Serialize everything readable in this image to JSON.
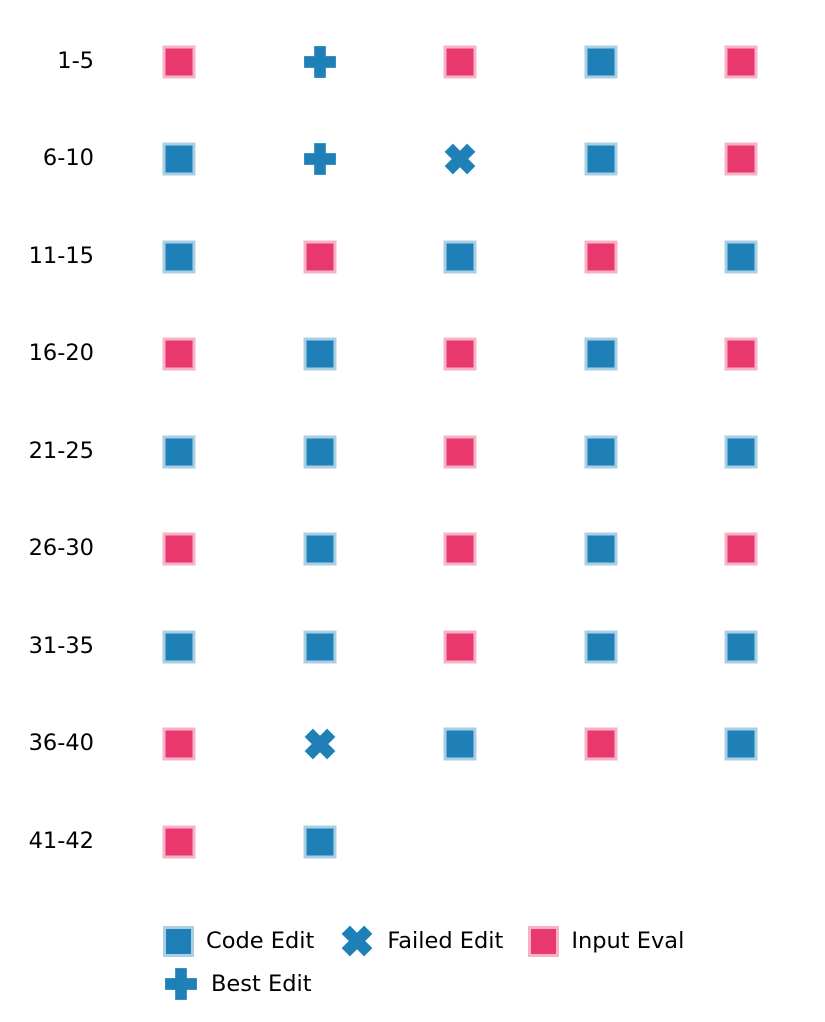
{
  "chart_data": {
    "type": "scatter",
    "description": "Categorical marker grid: each row of problems (1-5 ... 41-42) shows up to five outcome markers",
    "colors": {
      "blue": "#1f80b8",
      "pink": "#e8386e",
      "background": "#ffffff",
      "text": "#000000"
    },
    "marker_styles": {
      "code_edit": {
        "shape": "square",
        "color": "blue"
      },
      "failed_edit": {
        "shape": "x",
        "color": "blue"
      },
      "input_eval": {
        "shape": "square",
        "color": "pink"
      },
      "best_edit": {
        "shape": "plus",
        "color": "blue"
      }
    },
    "rows": [
      {
        "label": "1-5",
        "markers": [
          "input_eval",
          "best_edit",
          "input_eval",
          "code_edit",
          "input_eval"
        ]
      },
      {
        "label": "6-10",
        "markers": [
          "code_edit",
          "best_edit",
          "failed_edit",
          "code_edit",
          "input_eval"
        ]
      },
      {
        "label": "11-15",
        "markers": [
          "code_edit",
          "input_eval",
          "code_edit",
          "input_eval",
          "code_edit"
        ]
      },
      {
        "label": "16-20",
        "markers": [
          "input_eval",
          "code_edit",
          "input_eval",
          "code_edit",
          "input_eval"
        ]
      },
      {
        "label": "21-25",
        "markers": [
          "code_edit",
          "code_edit",
          "input_eval",
          "code_edit",
          "code_edit"
        ]
      },
      {
        "label": "26-30",
        "markers": [
          "input_eval",
          "code_edit",
          "input_eval",
          "code_edit",
          "input_eval"
        ]
      },
      {
        "label": "31-35",
        "markers": [
          "code_edit",
          "code_edit",
          "input_eval",
          "code_edit",
          "code_edit"
        ]
      },
      {
        "label": "36-40",
        "markers": [
          "input_eval",
          "failed_edit",
          "code_edit",
          "input_eval",
          "code_edit"
        ]
      },
      {
        "label": "41-42",
        "markers": [
          "input_eval",
          "code_edit"
        ]
      }
    ],
    "legend": [
      {
        "marker": "code_edit",
        "label": "Code Edit"
      },
      {
        "marker": "failed_edit",
        "label": "Failed Edit"
      },
      {
        "marker": "input_eval",
        "label": "Input Eval"
      },
      {
        "marker": "best_edit",
        "label": "Best Edit"
      }
    ],
    "legend_position": "bottom-left",
    "grid": false,
    "axes_visible": false
  }
}
